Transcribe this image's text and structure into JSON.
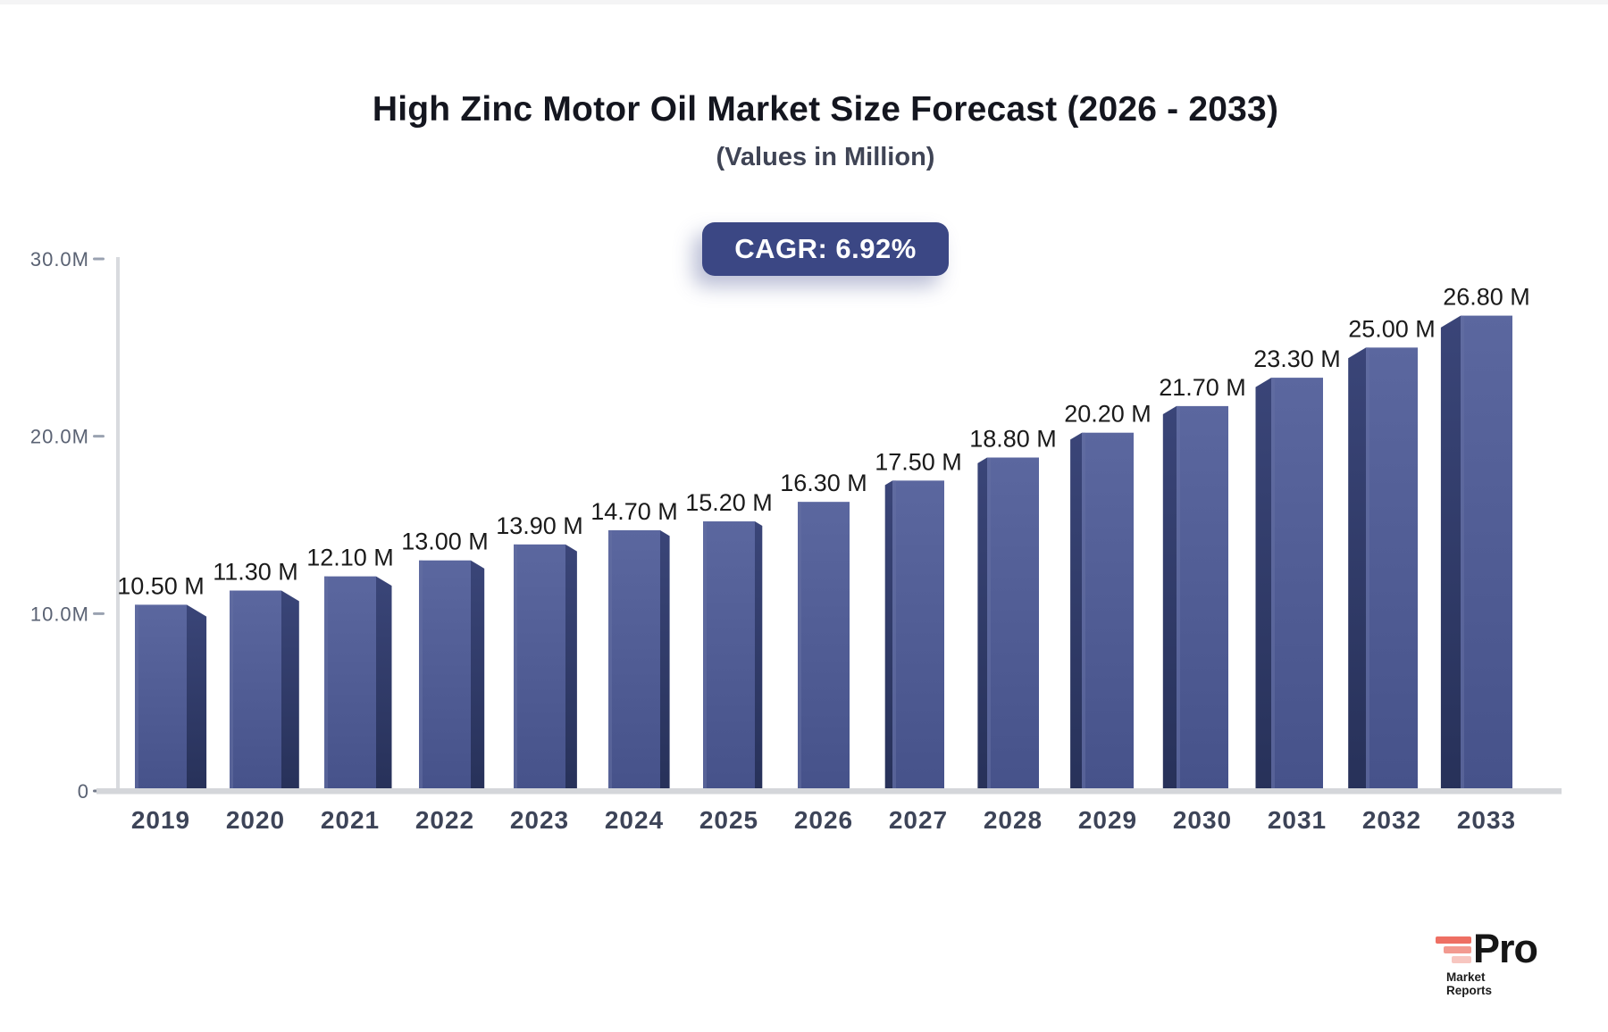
{
  "header": {
    "title": "High Zinc Motor Oil Market Size Forecast (2026 - 2033)",
    "subtitle": "(Values in Million)",
    "cagr_label": "CAGR: 6.92%"
  },
  "chart_data": {
    "type": "bar",
    "title": "High Zinc Motor Oil Market Size Forecast (2026 - 2033)",
    "subtitle": "(Values in Million)",
    "cagr": "6.92%",
    "unit": "Million",
    "categories": [
      "2019",
      "2020",
      "2021",
      "2022",
      "2023",
      "2024",
      "2025",
      "2026",
      "2027",
      "2028",
      "2029",
      "2030",
      "2031",
      "2032",
      "2033"
    ],
    "values": [
      10.5,
      11.3,
      12.1,
      13.0,
      13.9,
      14.7,
      15.2,
      16.3,
      17.5,
      18.8,
      20.2,
      21.7,
      23.3,
      25.0,
      26.8
    ],
    "value_labels": [
      "10.50 M",
      "11.30 M",
      "12.10 M",
      "13.00 M",
      "13.90 M",
      "14.70 M",
      "15.20 M",
      "16.30 M",
      "17.50 M",
      "18.80 M",
      "20.20 M",
      "21.70 M",
      "23.30 M",
      "25.00 M",
      "26.80 M"
    ],
    "y_ticks": [
      {
        "value": 0,
        "label": "0"
      },
      {
        "value": 10,
        "label": "10.0M"
      },
      {
        "value": 20,
        "label": "20.0M"
      },
      {
        "value": 30,
        "label": "30.0M"
      }
    ],
    "ylim": [
      0,
      30
    ],
    "grid": false,
    "legend": "none",
    "colors": {
      "bar_front_top": "#5b679f",
      "bar_front_bottom": "#46528a",
      "bar_side_top": "#3a4578",
      "bar_side_bottom": "#273159",
      "value_label": "#1a1a1a",
      "axis_line": "#d8dade",
      "baseline": "#d4d6da",
      "tick": "#9aa2b1",
      "zero_tick": "#737a8a",
      "year_label": "#3d4458",
      "y_label": "#5a6273",
      "badge_bg": "#3b4784",
      "logo_red": "#ee6f63"
    }
  },
  "logo": {
    "name": "Pro",
    "subtext": "Market Reports"
  }
}
